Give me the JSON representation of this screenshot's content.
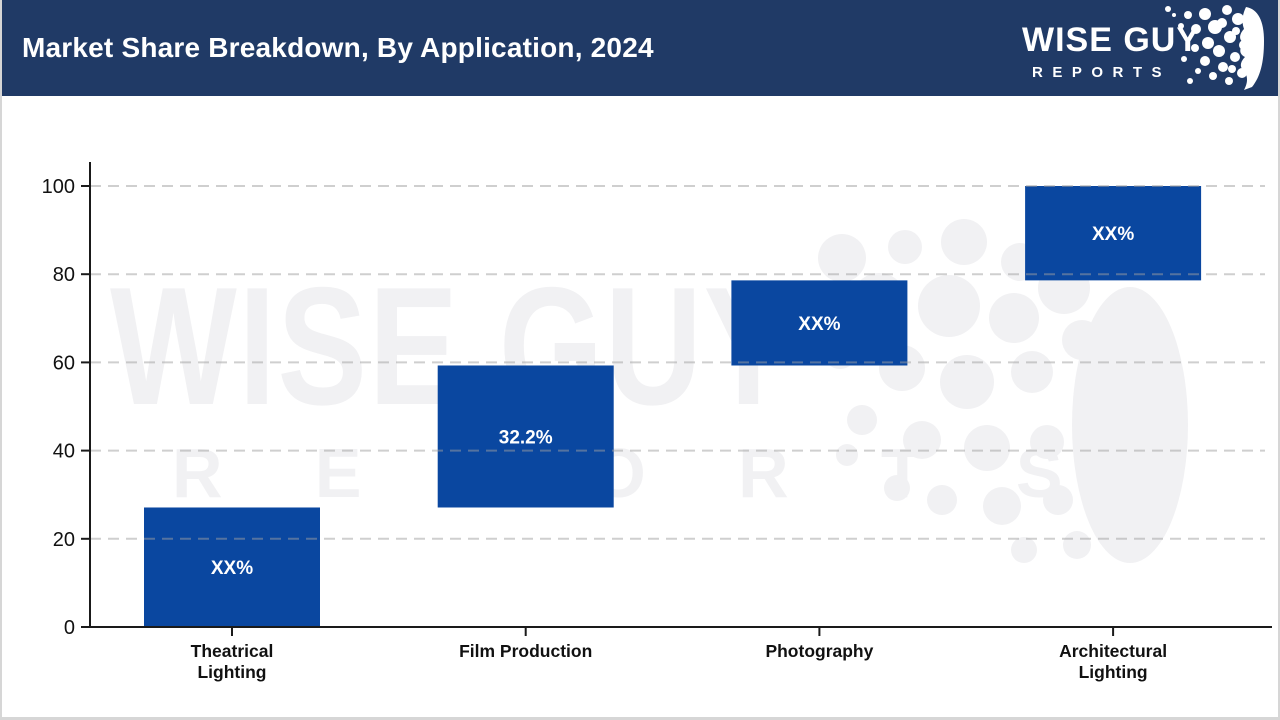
{
  "header": {
    "title": "Market Share Breakdown, By Application, 2024",
    "bg_color": "#203a66",
    "logo": {
      "wordmark": "WISE GUY",
      "subtext": "REPORTS"
    }
  },
  "watermark": {
    "wordmark": "WISE GUY",
    "subtext": "R E P O R T S",
    "color": "#f1f1f3"
  },
  "chart_data": {
    "type": "bar",
    "subtype": "waterfall",
    "title": "Market Share Breakdown, By Application, 2024",
    "xlabel": "",
    "ylabel": "",
    "ylim": [
      0,
      100
    ],
    "yticks": [
      0,
      20,
      40,
      60,
      80,
      100
    ],
    "grid": "horizontal-dashed-over-bars",
    "legend": "none",
    "bar_color": "#0a47a0",
    "bar_label_color": "#ffffff",
    "axis_color": "#1a1a1a",
    "tick_label_color": "#111111",
    "categories": [
      "Theatrical Lighting",
      "Film Production",
      "Photography",
      "Architectural Lighting"
    ],
    "category_lines": [
      [
        "Theatrical",
        "Lighting"
      ],
      [
        "Film Production"
      ],
      [
        "Photography"
      ],
      [
        "Architectural",
        "Lighting"
      ]
    ],
    "segments": [
      {
        "category": "Theatrical Lighting",
        "start": 0,
        "end": 27.1,
        "label": "XX%"
      },
      {
        "category": "Film Production",
        "start": 27.1,
        "end": 59.3,
        "label": "32.2%",
        "value": 32.2
      },
      {
        "category": "Photography",
        "start": 59.3,
        "end": 78.6,
        "label": "XX%"
      },
      {
        "category": "Architectural Lighting",
        "start": 78.6,
        "end": 100,
        "label": "XX%"
      }
    ]
  }
}
